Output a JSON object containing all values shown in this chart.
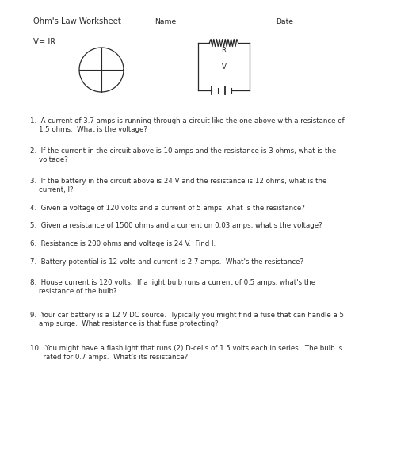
{
  "title": "Ohm's Law Worksheet",
  "name_line": "Name___________________",
  "date_line": "Date__________",
  "formula": "V= IR",
  "questions": [
    "1.  A current of 3.7 amps is running through a circuit like the one above with a resistance of\n    1.5 ohms.  What is the voltage?",
    "2.  If the current in the circuit above is 10 amps and the resistance is 3 ohms, what is the\n    voltage?",
    "3.  If the battery in the circuit above is 24 V and the resistance is 12 ohms, what is the\n    current, I?",
    "4.  Given a voltage of 120 volts and a current of 5 amps, what is the resistance?",
    "5.  Given a resistance of 1500 ohms and a current on 0.03 amps, what's the voltage?",
    "6.  Resistance is 200 ohms and voltage is 24 V.  Find I.",
    "7.  Battery potential is 12 volts and current is 2.7 amps.  What's the resistance?",
    "8.  House current is 120 volts.  If a light bulb runs a current of 0.5 amps, what's the\n    resistance of the bulb?",
    "9.  Your car battery is a 12 V DC source.  Typically you might find a fuse that can handle a 5\n    amp surge.  What resistance is that fuse protecting?",
    "10.  You might have a flashlight that runs (2) D-cells of 1.5 volts each in series.  The bulb is\n      rated for 0.7 amps.  What's its resistance?"
  ],
  "bg_color": "#ffffff",
  "text_color": "#2a2a2a",
  "font_size": 6.2,
  "title_font_size": 7.2,
  "diagram_color": "#2a2a2a"
}
